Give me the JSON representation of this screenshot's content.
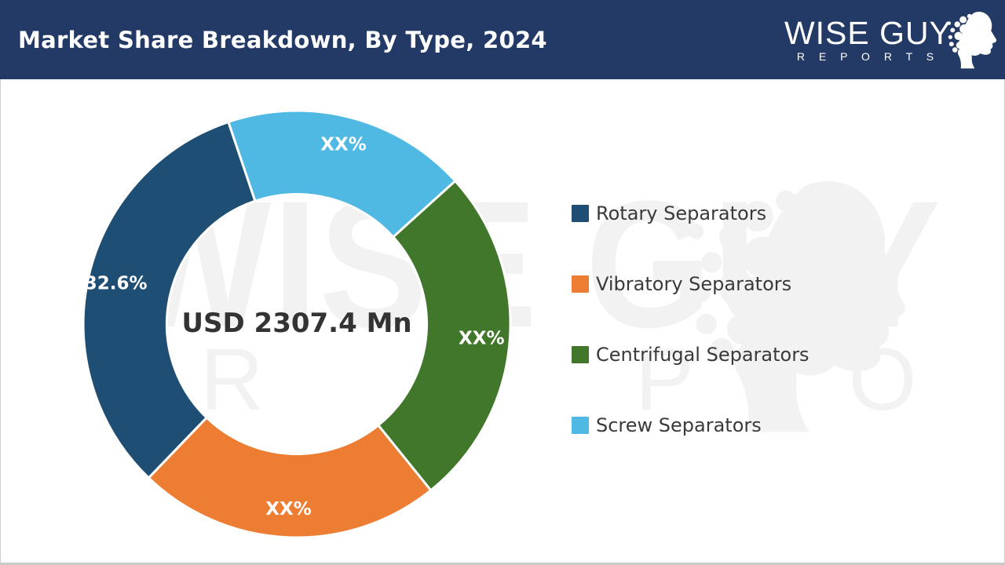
{
  "header": {
    "title": "Market Share Breakdown, By Type, 2024",
    "logo": {
      "line1": "WISE GUY",
      "line2": "R E P O R T S"
    }
  },
  "watermark": {
    "line1": "WISE GUY",
    "line2": "R E P O R T S"
  },
  "chart_data": {
    "type": "pie",
    "subtype": "donut",
    "title": "Market Share Breakdown, By Type, 2024",
    "center_label": "USD 2307.4 Mn",
    "start_angle_deg": -18.7,
    "draw_direction": "clockwise-from-top-reverse-legend-order",
    "legend_position": "right",
    "segments": [
      {
        "name": "Rotary Separators",
        "label": "32.6%",
        "value_pct": 32.6,
        "color": "#1F4E74"
      },
      {
        "name": "Vibratory Separators",
        "label": "XX%",
        "value_pct": 23.0,
        "color": "#ED7D33"
      },
      {
        "name": "Centrifugal Separators",
        "label": "XX%",
        "value_pct": 25.9,
        "color": "#41772A"
      },
      {
        "name": "Screw Separators",
        "label": "XX%",
        "value_pct": 18.5,
        "color": "#4FB8E3"
      }
    ]
  },
  "colors": {
    "header_bg": "#233A66",
    "center_text": "#333333",
    "legend_text": "#3A3A3A",
    "watermark": "#F2F2F2",
    "frame_border": "#C9C9C9"
  }
}
